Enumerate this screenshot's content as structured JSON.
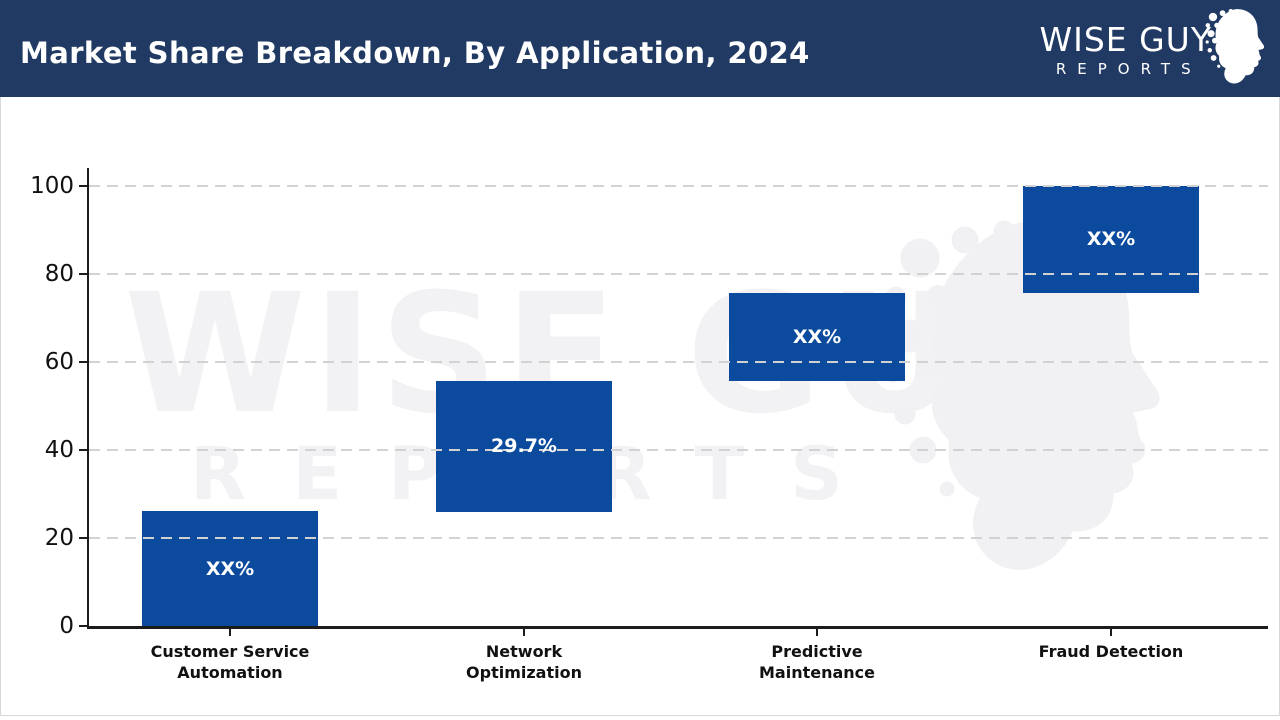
{
  "header": {
    "title": "Market Share Breakdown, By Application, 2024",
    "logo": {
      "line1": "WISE GUY",
      "line2": "REPORTS"
    }
  },
  "watermark": {
    "line1": "WISE GU",
    "line2": "REPORTS"
  },
  "chart_data": {
    "type": "bar",
    "subtype": "waterfall",
    "title": "Market Share Breakdown, By Application, 2024",
    "xlabel": "",
    "ylabel": "",
    "ylim": [
      0,
      100
    ],
    "yticks": [
      0,
      20,
      40,
      60,
      80,
      100
    ],
    "grid": "horizontal-dashed",
    "legend": "none",
    "bar_color": "#0c4a9e",
    "label_color": "#ffffff",
    "categories": [
      "Customer Service\nAutomation",
      "Network\nOptimization",
      "Predictive\nMaintenance",
      "Fraud Detection"
    ],
    "bars": [
      {
        "category": "Customer Service Automation",
        "start": 0,
        "end": 26.1,
        "label": "XX%"
      },
      {
        "category": "Network Optimization",
        "start": 26.0,
        "end": 55.7,
        "label": "29.7%"
      },
      {
        "category": "Predictive Maintenance",
        "start": 55.7,
        "end": 75.7,
        "label": "XX%"
      },
      {
        "category": "Fraud Detection",
        "start": 75.7,
        "end": 100,
        "label": "XX%"
      }
    ]
  },
  "colors": {
    "header_bg": "#213a63",
    "bar": "#0c4a9e",
    "axis": "#1c1c1c",
    "gridline": "#d2d2d2",
    "watermark": "#f2f2f4",
    "frame_border": "#d8d8d8"
  }
}
